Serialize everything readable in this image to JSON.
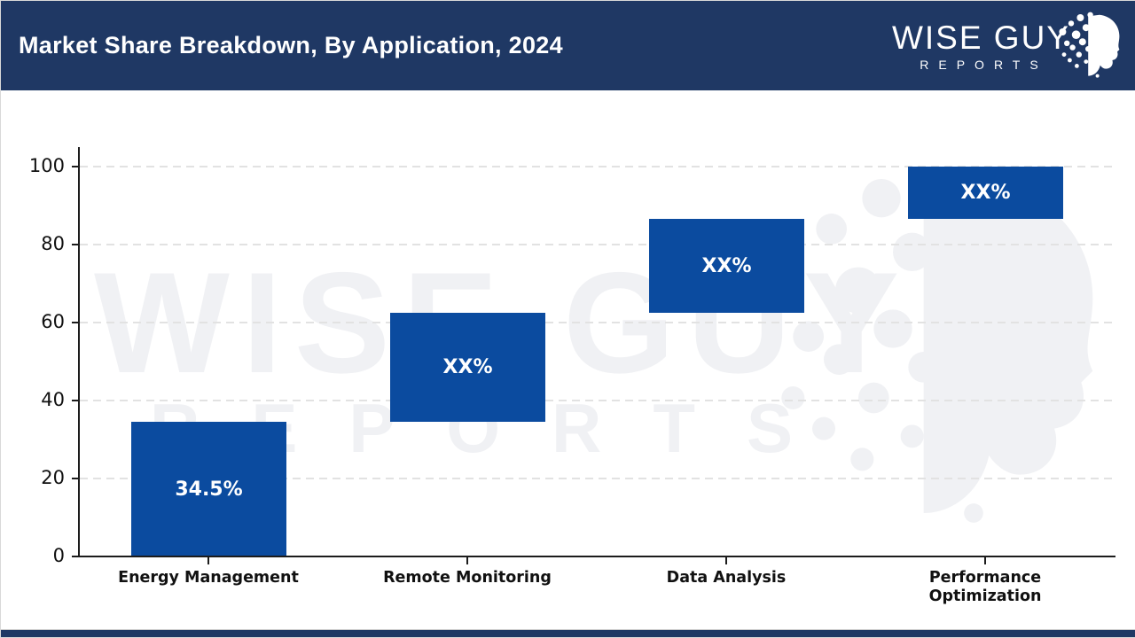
{
  "header": {
    "title": "Market Share Breakdown, By Application, 2024",
    "bg_color": "#1f3864",
    "logo": {
      "name": "WISE GUY",
      "sub": "REPORTS",
      "head_icon": "dotted-head-profile-icon"
    }
  },
  "watermark": {
    "line1": "WISE GUY",
    "line2": "REPORTS",
    "color": "#f0f1f4"
  },
  "chart_data": {
    "type": "bar",
    "subtype": "waterfall-floating-bars",
    "title": "Market Share Breakdown, By Application, 2024",
    "categories": [
      "Energy Management",
      "Remote Monitoring",
      "Data Analysis",
      "Performance\nOptimization"
    ],
    "series": [
      {
        "name": "Market share (%)",
        "segments": [
          {
            "category": "Energy Management",
            "start": 0,
            "end": 34.5,
            "label": "34.5%"
          },
          {
            "category": "Remote Monitoring",
            "start": 34.5,
            "end": 62.5,
            "label": "XX%"
          },
          {
            "category": "Data Analysis",
            "start": 62.5,
            "end": 86.5,
            "label": "XX%"
          },
          {
            "category": "Performance Optimization",
            "start": 86.5,
            "end": 100,
            "label": "XX%"
          }
        ]
      }
    ],
    "xlabel": "",
    "ylabel": "",
    "ylim": [
      0,
      105
    ],
    "yticks": [
      0,
      20,
      40,
      60,
      80,
      100
    ],
    "grid": "horizontal-dashed",
    "legend_position": "none",
    "bar_color": "#0b4b9f",
    "bar_label_color": "#ffffff",
    "axis_color": "#1c1c1c",
    "gridline_color": "#e2e2e2"
  },
  "footer": {
    "bg_color": "#1f3864"
  }
}
